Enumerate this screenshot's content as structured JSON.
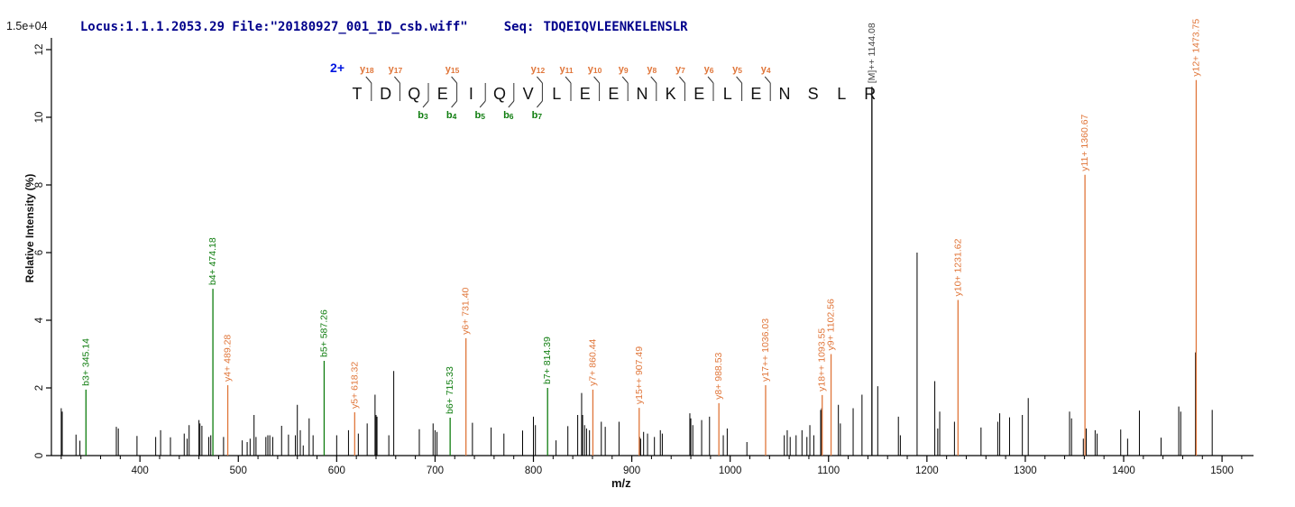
{
  "header": {
    "locus": "Locus:1.1.1.2053.29 File:\"20180927_001_ID_csb.wiff\"",
    "seq_label": "Seq:",
    "seq_value": "TDQEIQVLEENKELENSLR"
  },
  "y_axis": {
    "scale_note": "1.5e+04",
    "label": "Relative  Intensity (%)",
    "ticks": [
      0,
      2,
      4,
      6,
      8,
      10,
      12
    ]
  },
  "x_axis": {
    "label": "m/z",
    "ticks": [
      400,
      500,
      600,
      700,
      800,
      900,
      1000,
      1100,
      1200,
      1300,
      1400,
      1500
    ],
    "minor_tick_step": 20
  },
  "peptide": {
    "charge_label": "2+",
    "residues": "TDQEIQVLEENKELENSLR",
    "y_ions": [
      [
        "18",
        1
      ],
      [
        "17",
        2
      ],
      [
        "15",
        4
      ],
      [
        "12",
        7
      ],
      [
        "11",
        8
      ],
      [
        "10",
        9
      ],
      [
        "9",
        10
      ],
      [
        "8",
        11
      ],
      [
        "7",
        12
      ],
      [
        "6",
        13
      ],
      [
        "5",
        14
      ],
      [
        "4",
        15
      ]
    ],
    "b_ions": [
      [
        "3",
        3
      ],
      [
        "4",
        4
      ],
      [
        "5",
        5
      ],
      [
        "6",
        6
      ],
      [
        "7",
        7
      ]
    ]
  },
  "colors": {
    "b_ion": "#0f7d0f",
    "y_ion": "#e0763a",
    "peak": "#000000",
    "precursor_label": "#444444",
    "header_text": "#00008b",
    "charge_label": "#0016e0"
  },
  "chart_data": {
    "type": "bar",
    "title": "MS/MS fragment spectrum",
    "xlabel": "m/z",
    "ylabel": "Relative  Intensity (%)",
    "scale_note": "1.5e+04",
    "xlim": [
      310,
      1532
    ],
    "ylim": [
      0,
      12.35
    ],
    "grid": false,
    "labeled_peaks": [
      {
        "label": "b3+ 345.14",
        "mz": 345.14,
        "intensity": 1.95,
        "series": "b"
      },
      {
        "label": "b4+ 474.18",
        "mz": 474.18,
        "intensity": 4.93,
        "series": "b"
      },
      {
        "label": "y4+ 489.28",
        "mz": 489.28,
        "intensity": 2.08,
        "series": "y"
      },
      {
        "label": "b5+ 587.26",
        "mz": 587.26,
        "intensity": 2.8,
        "series": "b"
      },
      {
        "label": "y5+ 618.32",
        "mz": 618.32,
        "intensity": 1.28,
        "series": "y"
      },
      {
        "label": "b6+ 715.33",
        "mz": 715.33,
        "intensity": 1.12,
        "series": "b"
      },
      {
        "label": "y6+ 731.40",
        "mz": 731.4,
        "intensity": 3.47,
        "series": "y"
      },
      {
        "label": "b7+ 814.39",
        "mz": 814.39,
        "intensity": 2.0,
        "series": "b"
      },
      {
        "label": "y7+ 860.44",
        "mz": 860.44,
        "intensity": 1.95,
        "series": "y"
      },
      {
        "label": "y15++ 907.49",
        "mz": 907.49,
        "intensity": 1.41,
        "series": "y"
      },
      {
        "label": "y8+ 988.53",
        "mz": 988.53,
        "intensity": 1.55,
        "series": "y"
      },
      {
        "label": "y17++ 1036.03",
        "mz": 1036.03,
        "intensity": 2.08,
        "series": "y"
      },
      {
        "label": "y18++ 1093.55",
        "mz": 1093.55,
        "intensity": 1.79,
        "series": "y"
      },
      {
        "label": "y9+ 1102.56",
        "mz": 1102.56,
        "intensity": 3.0,
        "series": "y"
      },
      {
        "label": "[M]++ 1144.08",
        "mz": 1144.08,
        "intensity": 10.9,
        "series": "precursor"
      },
      {
        "label": "y10+ 1231.62",
        "mz": 1231.62,
        "intensity": 4.6,
        "series": "y"
      },
      {
        "label": "y11+ 1360.67",
        "mz": 1360.67,
        "intensity": 8.3,
        "series": "y"
      },
      {
        "label": "y12+ 1473.75",
        "mz": 1473.75,
        "intensity": 11.1,
        "series": "y"
      }
    ],
    "noise_peaks": [
      [
        320,
        1.4
      ],
      [
        321,
        1.3
      ],
      [
        335,
        0.62
      ],
      [
        339,
        0.44
      ],
      [
        376,
        0.85
      ],
      [
        378,
        0.8
      ],
      [
        397,
        0.58
      ],
      [
        416,
        0.55
      ],
      [
        421,
        0.75
      ],
      [
        431,
        0.54
      ],
      [
        445,
        0.65
      ],
      [
        448,
        0.5
      ],
      [
        450,
        0.9
      ],
      [
        460,
        1.05
      ],
      [
        461,
        0.95
      ],
      [
        463,
        0.88
      ],
      [
        470,
        0.55
      ],
      [
        472,
        0.6
      ],
      [
        485,
        0.55
      ],
      [
        504,
        0.45
      ],
      [
        509,
        0.4
      ],
      [
        512,
        0.5
      ],
      [
        516,
        1.2
      ],
      [
        518,
        0.55
      ],
      [
        528,
        0.55
      ],
      [
        530,
        0.6
      ],
      [
        532,
        0.6
      ],
      [
        535,
        0.55
      ],
      [
        544,
        0.88
      ],
      [
        551,
        0.62
      ],
      [
        558,
        0.6
      ],
      [
        560,
        1.5
      ],
      [
        563,
        0.75
      ],
      [
        566,
        0.3
      ],
      [
        572,
        1.1
      ],
      [
        576,
        0.6
      ],
      [
        600,
        0.6
      ],
      [
        612,
        0.75
      ],
      [
        622,
        0.65
      ],
      [
        631,
        0.95
      ],
      [
        639,
        1.8
      ],
      [
        640,
        1.2
      ],
      [
        641,
        1.15
      ],
      [
        653,
        0.6
      ],
      [
        658,
        2.5
      ],
      [
        684,
        0.78
      ],
      [
        698,
        0.95
      ],
      [
        700,
        0.75
      ],
      [
        702,
        0.7
      ],
      [
        738,
        0.97
      ],
      [
        757,
        0.83
      ],
      [
        770,
        0.65
      ],
      [
        789,
        0.74
      ],
      [
        800,
        1.15
      ],
      [
        802,
        0.9
      ],
      [
        823,
        0.45
      ],
      [
        835,
        0.87
      ],
      [
        845,
        1.2
      ],
      [
        849,
        1.85
      ],
      [
        850,
        1.2
      ],
      [
        852,
        0.9
      ],
      [
        854,
        0.8
      ],
      [
        857,
        0.75
      ],
      [
        869,
        1.0
      ],
      [
        873,
        0.85
      ],
      [
        887,
        1.0
      ],
      [
        908,
        0.55
      ],
      [
        909,
        0.5
      ],
      [
        912,
        0.7
      ],
      [
        916,
        0.65
      ],
      [
        923,
        0.55
      ],
      [
        929,
        0.75
      ],
      [
        931,
        0.65
      ],
      [
        959,
        1.25
      ],
      [
        960,
        1.1
      ],
      [
        962,
        0.9
      ],
      [
        971,
        1.05
      ],
      [
        979,
        1.15
      ],
      [
        993,
        0.6
      ],
      [
        997,
        0.8
      ],
      [
        1017,
        0.4
      ],
      [
        1055,
        0.6
      ],
      [
        1058,
        0.75
      ],
      [
        1061,
        0.55
      ],
      [
        1067,
        0.6
      ],
      [
        1073,
        0.75
      ],
      [
        1078,
        0.55
      ],
      [
        1081,
        0.9
      ],
      [
        1085,
        0.6
      ],
      [
        1092,
        1.35
      ],
      [
        1093,
        1.4
      ],
      [
        1110,
        1.5
      ],
      [
        1112,
        0.95
      ],
      [
        1125,
        1.4
      ],
      [
        1134,
        1.8
      ],
      [
        1150,
        2.05
      ],
      [
        1171,
        1.15
      ],
      [
        1173,
        0.6
      ],
      [
        1190,
        6.0
      ],
      [
        1208,
        2.2
      ],
      [
        1211,
        0.8
      ],
      [
        1213,
        1.3
      ],
      [
        1228,
        1.0
      ],
      [
        1255,
        0.83
      ],
      [
        1272,
        1.0
      ],
      [
        1274,
        1.25
      ],
      [
        1284,
        1.13
      ],
      [
        1297,
        1.2
      ],
      [
        1303,
        1.7
      ],
      [
        1345,
        1.3
      ],
      [
        1347,
        1.1
      ],
      [
        1359,
        0.5
      ],
      [
        1362,
        0.8
      ],
      [
        1371,
        0.75
      ],
      [
        1373,
        0.65
      ],
      [
        1397,
        0.77
      ],
      [
        1404,
        0.5
      ],
      [
        1416,
        1.33
      ],
      [
        1438,
        0.53
      ],
      [
        1456,
        1.45
      ],
      [
        1458,
        1.3
      ],
      [
        1473,
        3.05
      ],
      [
        1490,
        1.35
      ]
    ]
  }
}
